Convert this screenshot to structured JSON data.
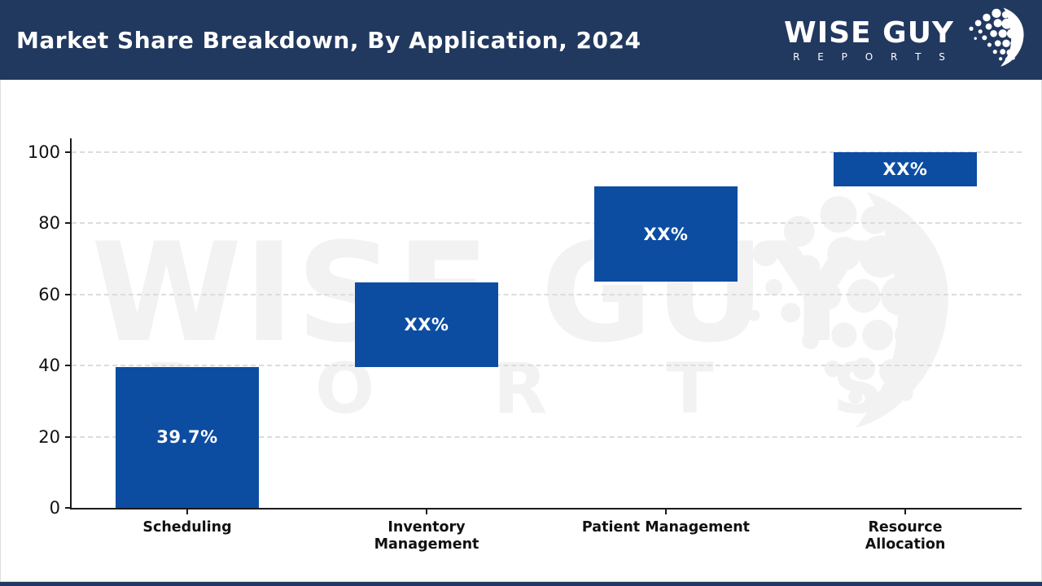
{
  "header": {
    "title": "Market Share Breakdown, By Application, 2024",
    "logo": {
      "line1": "WISE GUY",
      "line2": "R E P O R T S"
    },
    "background_color": "#21385f"
  },
  "watermark": {
    "line1": "WISE GUY",
    "line2": "P O R T S"
  },
  "colors": {
    "bar": "#0c4da2",
    "navy": "#21385f",
    "gridline": "#dcdcdc",
    "watermark": "#f2f2f3",
    "axis": "#1a1a1a"
  },
  "chart_data": {
    "type": "bar",
    "subtype": "waterfall",
    "title": "Market Share Breakdown, By Application, 2024",
    "categories": [
      "Scheduling",
      "Inventory Management",
      "Patient Management",
      "Resource Allocation"
    ],
    "category_lines": [
      [
        "Scheduling"
      ],
      [
        "Inventory",
        "Management"
      ],
      [
        "Patient Management"
      ],
      [
        "Resource",
        "Allocation"
      ]
    ],
    "segments": [
      {
        "category": "Scheduling",
        "start": 0,
        "end": 39.7,
        "label": "39.7%"
      },
      {
        "category": "Inventory Management",
        "start": 39.7,
        "end": 63.5,
        "label": "XX%"
      },
      {
        "category": "Patient Management",
        "start": 63.5,
        "end": 90.3,
        "label": "XX%"
      },
      {
        "category": "Resource Allocation",
        "start": 90.3,
        "end": 100,
        "label": "XX%"
      }
    ],
    "xlabel": "",
    "ylabel": "",
    "yticks": [
      0,
      20,
      40,
      60,
      80,
      100
    ],
    "ylim": [
      0,
      100
    ],
    "grid": "horizontal-dashed",
    "legend": "none",
    "bar_color": "#0c4da2",
    "bar_label_color": "#ffffff"
  }
}
